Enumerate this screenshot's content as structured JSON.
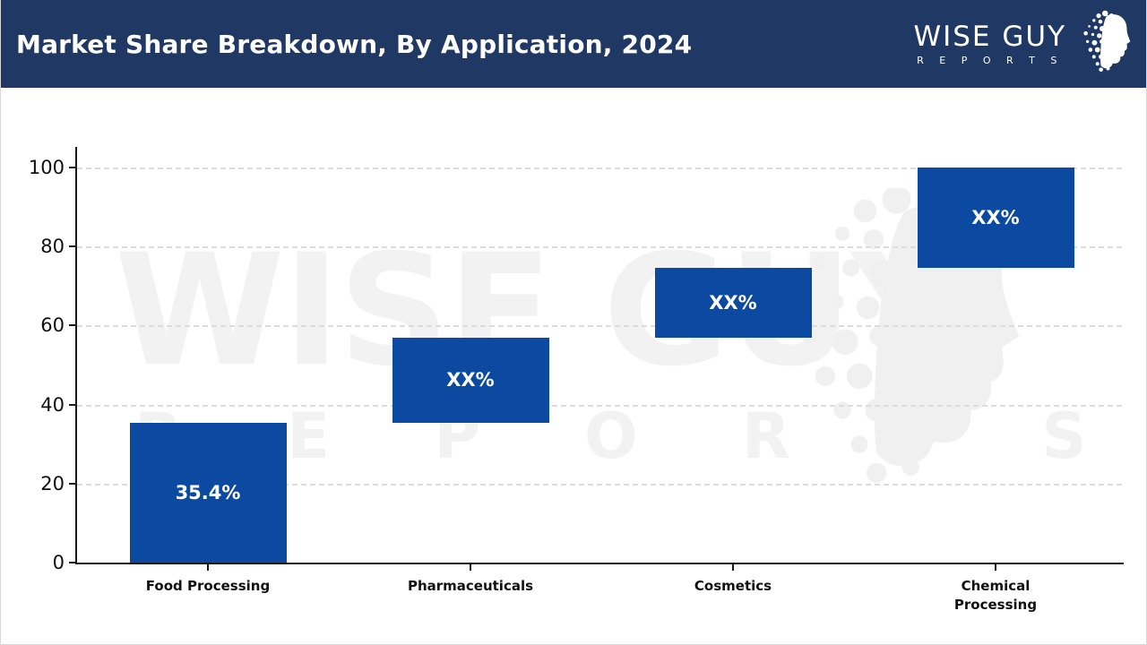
{
  "header": {
    "title": "Market Share Breakdown, By Application, 2024",
    "logo": {
      "line1": "WISE GUY",
      "line2": "R E P O R T S"
    }
  },
  "watermark": {
    "line1": "WISE GUY",
    "line2": "R E P O R T S"
  },
  "colors": {
    "header_bg": "#1F3864",
    "title_text": "#FFFFFF",
    "bar": "#0B4AA0",
    "bar_label": "#FFFFFF",
    "grid": "#DCDCDC",
    "axis": "#1A1A1A",
    "tick_label": "#111111",
    "watermark": "#F2F2F2"
  },
  "chart_data": {
    "type": "bar",
    "subtype": "floating-waterfall",
    "title": "Market Share Breakdown, By Application, 2024",
    "categories": [
      "Food Processing",
      "Pharmaceuticals",
      "Cosmetics",
      "Chemical Processing"
    ],
    "categories_display": [
      "Food Processing",
      "Pharmaceuticals",
      "Cosmetics",
      "Chemical\nProcessing"
    ],
    "series": [
      {
        "name": "Market share (%)",
        "segments": [
          {
            "category": "Food Processing",
            "from": 0,
            "to": 35.4,
            "label": "35.4%"
          },
          {
            "category": "Pharmaceuticals",
            "from": 35.4,
            "to": 56.9,
            "label": "XX%"
          },
          {
            "category": "Cosmetics",
            "from": 56.9,
            "to": 74.6,
            "label": "XX%"
          },
          {
            "category": "Chemical Processing",
            "from": 74.6,
            "to": 100,
            "label": "XX%"
          }
        ]
      }
    ],
    "xlabel": "",
    "ylabel": "",
    "ylim": [
      0,
      105
    ],
    "yticks": [
      0,
      20,
      40,
      60,
      80,
      100
    ],
    "grid": "horizontal-dashed",
    "legend": "none"
  }
}
